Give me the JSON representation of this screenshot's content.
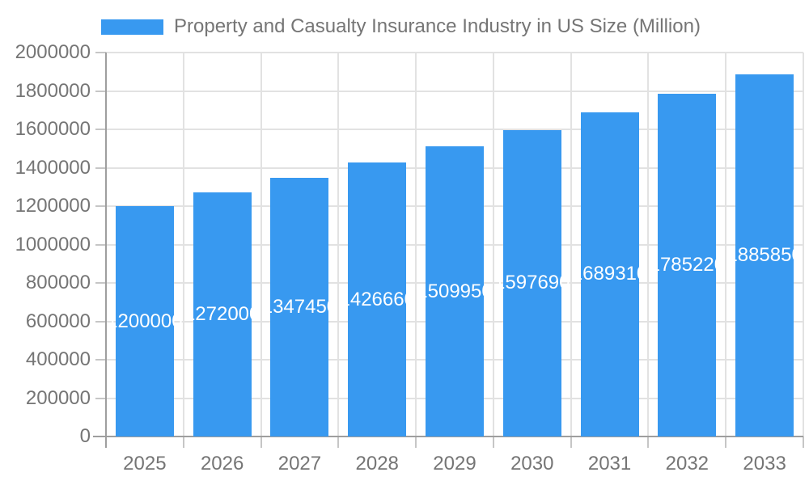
{
  "colors": {
    "bar": "#3899f0",
    "bar_label": "#ffffff",
    "axis_text": "#757575",
    "title_text": "#757575",
    "gridline": "#e2e2e2",
    "axis_line": "#9e9e9e",
    "tick": "#c6c6c6",
    "background": "#ffffff"
  },
  "legend": {
    "label": "Property and Casualty Insurance Industry in US Size (Million)"
  },
  "chart_data": {
    "type": "bar",
    "title": "Property and Casualty Insurance Industry in US Size (Million)",
    "categories": [
      "2025",
      "2026",
      "2027",
      "2028",
      "2029",
      "2030",
      "2031",
      "2032",
      "2033"
    ],
    "series": [
      {
        "name": "Property and Casualty Insurance Industry in US Size (Million)",
        "values": [
          1200000,
          1272000,
          1347450,
          1426660,
          1509950,
          1597690,
          1689310,
          1785220,
          1885850
        ]
      }
    ],
    "xlabel": "",
    "ylabel": "",
    "ylim": [
      0,
      2000000
    ],
    "yticks": [
      0,
      200000,
      400000,
      600000,
      800000,
      1000000,
      1200000,
      1400000,
      1600000,
      1800000,
      2000000
    ],
    "grid": true,
    "legend_position": "top-left",
    "value_labels_position": "inside-center"
  }
}
